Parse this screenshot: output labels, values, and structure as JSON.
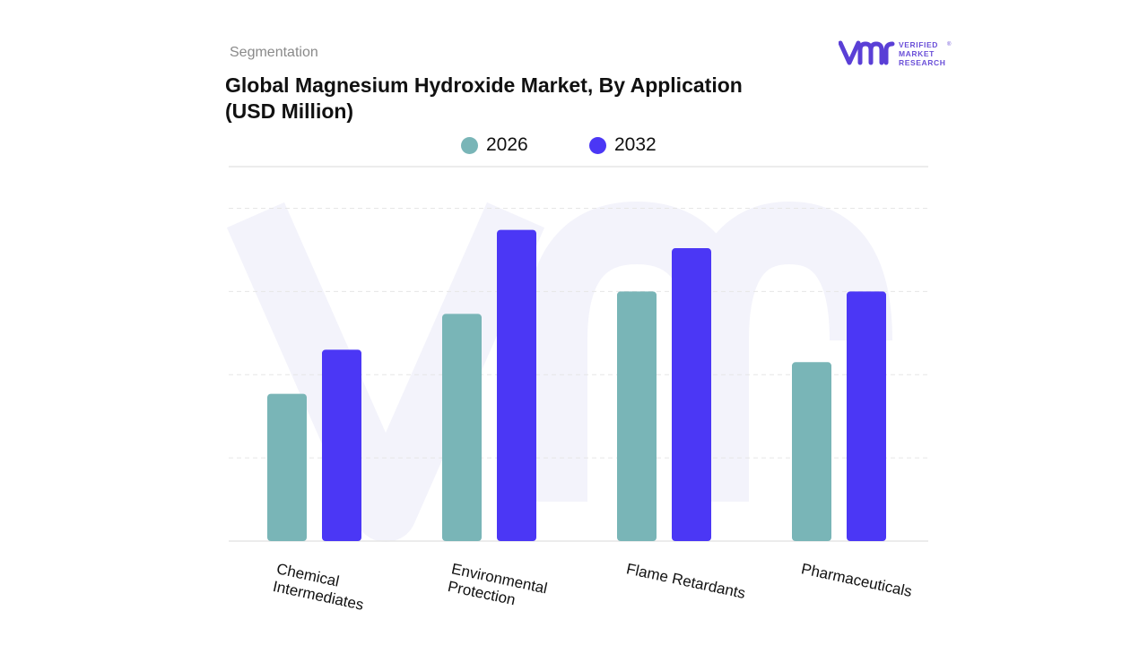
{
  "header": {
    "section_label": "Segmentation",
    "title_line1": "Global Magnesium Hydroxide Market, By Application",
    "title_line2": "(USD Million)"
  },
  "logo": {
    "mark": "vmr",
    "words": [
      "VERIFIED",
      "MARKET",
      "RESEARCH"
    ],
    "registered": "®",
    "brand_color": "#5a3fd6",
    "text_color": "#6a4fd8"
  },
  "colors": {
    "series_2026": "#79b5b7",
    "series_2032": "#4b37f5",
    "grid": "#e6e6e6",
    "watermark": "#f3f3fb"
  },
  "chart_data": {
    "type": "bar",
    "title": "Global Magnesium Hydroxide Market, By Application (USD Million)",
    "categories": [
      [
        "Chemical",
        "Intermediates"
      ],
      [
        "Environmental",
        "Protection"
      ],
      [
        "Flame Retardants"
      ],
      [
        "Pharmaceuticals"
      ]
    ],
    "series": [
      {
        "name": "2026",
        "values": [
          1.77,
          2.73,
          3.0,
          2.15
        ]
      },
      {
        "name": "2032",
        "values": [
          2.3,
          3.74,
          3.52,
          3.0
        ]
      }
    ],
    "ylim": [
      0,
      4.5
    ],
    "xlabel": "",
    "ylabel": "",
    "grid": true,
    "y_tick_labels_shown": false,
    "legend_position": "top-center",
    "x_label_rotation_deg": 12
  }
}
